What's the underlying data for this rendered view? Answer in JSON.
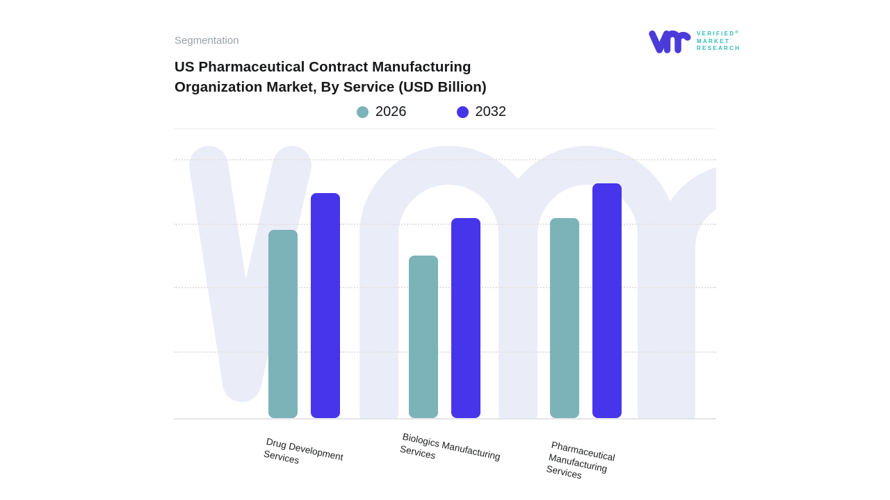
{
  "page": {
    "eyebrow": "Segmentation",
    "title": "US Pharmaceutical Contract Manufacturing\nOrganization Market, By Service (USD Billion)"
  },
  "logo": {
    "mark": "vmr-monogram",
    "mark_color": "#4B3BD8",
    "text_color": "#2FBCB0",
    "lines": [
      "VERIFIED",
      "MARKET",
      "RESEARCH"
    ],
    "registered": "®"
  },
  "chart_data": {
    "type": "bar",
    "title": "US Pharmaceutical Contract Manufacturing Organization Market, By Service (USD Billion)",
    "categories": [
      "Drug Development\nServices",
      "Biologics Manufacturing\nServices",
      "Pharmaceutical\nManufacturing\nServices"
    ],
    "series": [
      {
        "name": "2026",
        "color": "#7CB3B9",
        "values": [
          64.9,
          56.1,
          69.0
        ]
      },
      {
        "name": "2032",
        "color": "#4735EB",
        "values": [
          77.6,
          69.0,
          81.1
        ]
      }
    ],
    "value_unit": "relative bar height, % of plot-area height (y-axis has no tick labels in source)",
    "xlabel": "",
    "ylabel": "",
    "ylim": [
      0,
      100
    ],
    "grid": "4 horizontal dotted gridlines, no y tick labels",
    "legend_position": "top-center",
    "x_tick_rotation_deg": 12
  },
  "watermark": {
    "name": "vmr-watermark",
    "color": "#EAEDF8"
  }
}
